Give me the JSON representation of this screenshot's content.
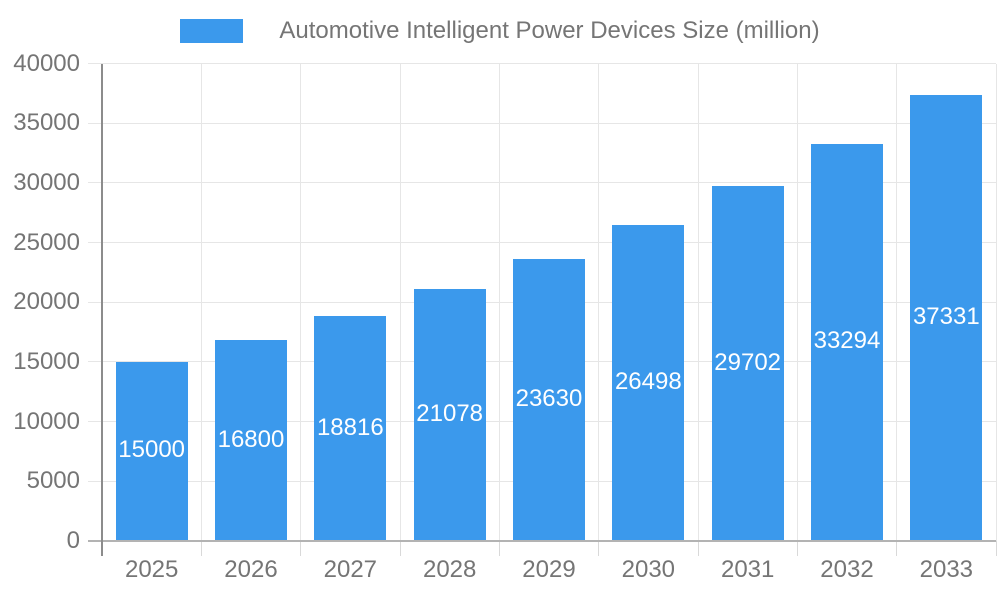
{
  "legend": {
    "label": "Automotive Intelligent Power Devices Size (million)"
  },
  "colors": {
    "bar": "#3b99ec",
    "grid": "#e6e6e6",
    "tick": "#d9d9d9",
    "axis_line": "#8c8c8c",
    "baseline": "#b3b3b3",
    "text": "#757575",
    "bar_label": "#ffffff",
    "background": "#ffffff"
  },
  "chart_data": {
    "type": "bar",
    "title": "Automotive Intelligent Power Devices Size (million)",
    "categories": [
      "2025",
      "2026",
      "2027",
      "2028",
      "2029",
      "2030",
      "2031",
      "2032",
      "2033"
    ],
    "values": [
      15000,
      16800,
      18816,
      21078,
      23630,
      26498,
      29702,
      33294,
      37331
    ],
    "xlabel": "",
    "ylabel": "",
    "ylim": [
      0,
      40000
    ],
    "ytick_step": 5000,
    "yticks": [
      0,
      5000,
      10000,
      15000,
      20000,
      25000,
      30000,
      35000,
      40000
    ],
    "grid": true,
    "legend_position": "top",
    "bar_label_position": "inside-center"
  }
}
